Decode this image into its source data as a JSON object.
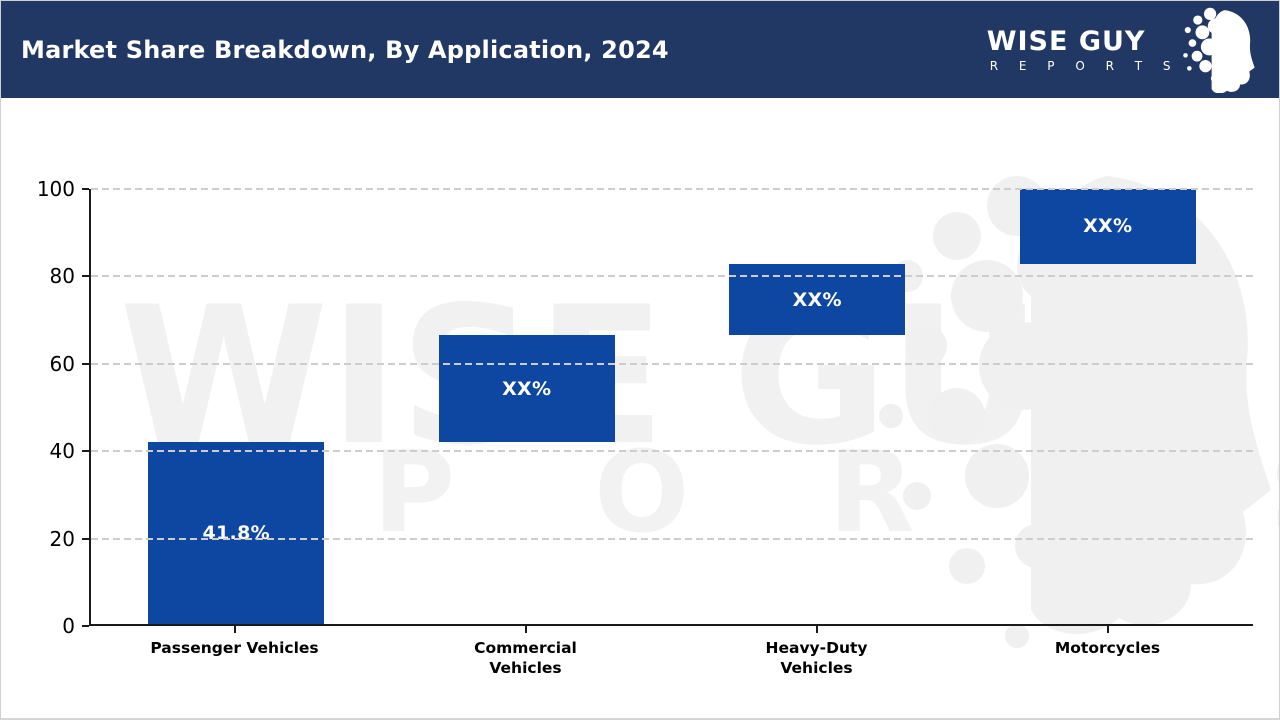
{
  "header": {
    "title": "Market Share Breakdown, By Application, 2024",
    "bg_color": "#223864",
    "logo": {
      "wordmark": "WISE GUY",
      "subtext": "R E P O R T S"
    }
  },
  "watermark": {
    "line1": "WISE GUY",
    "line2": "P O R T S"
  },
  "chart_data": {
    "type": "bar",
    "variant": "waterfall",
    "title": "Market Share Breakdown, By Application, 2024",
    "categories": [
      "Passenger Vehicles",
      "Commercial Vehicles",
      "Heavy-Duty Vehicles",
      "Motorcycles"
    ],
    "category_label_lines": [
      [
        "Passenger Vehicles"
      ],
      [
        "Commercial",
        "Vehicles"
      ],
      [
        "Heavy-Duty",
        "Vehicles"
      ],
      [
        "Motorcycles"
      ]
    ],
    "segments": [
      {
        "category": "Passenger Vehicles",
        "start": 0,
        "end": 41.8,
        "label": "41.8%"
      },
      {
        "category": "Commercial Vehicles",
        "start": 41.8,
        "end": 66.4,
        "label": "XX%"
      },
      {
        "category": "Heavy-Duty Vehicles",
        "start": 66.4,
        "end": 82.8,
        "label": "XX%"
      },
      {
        "category": "Motorcycles",
        "start": 82.8,
        "end": 100.0,
        "label": "XX%"
      }
    ],
    "ylim": [
      0,
      100
    ],
    "yticks": [
      0,
      20,
      40,
      60,
      80,
      100
    ],
    "xlabel": "",
    "ylabel": "",
    "grid": {
      "axis": "y",
      "style": "dashed",
      "color": "#CDCDCD",
      "drawn_over_bars": true
    },
    "legend": "none",
    "bar_color": "#0D47A1",
    "bar_label_color": "#FFFFFF",
    "axis_color": "#1A1A1A"
  }
}
